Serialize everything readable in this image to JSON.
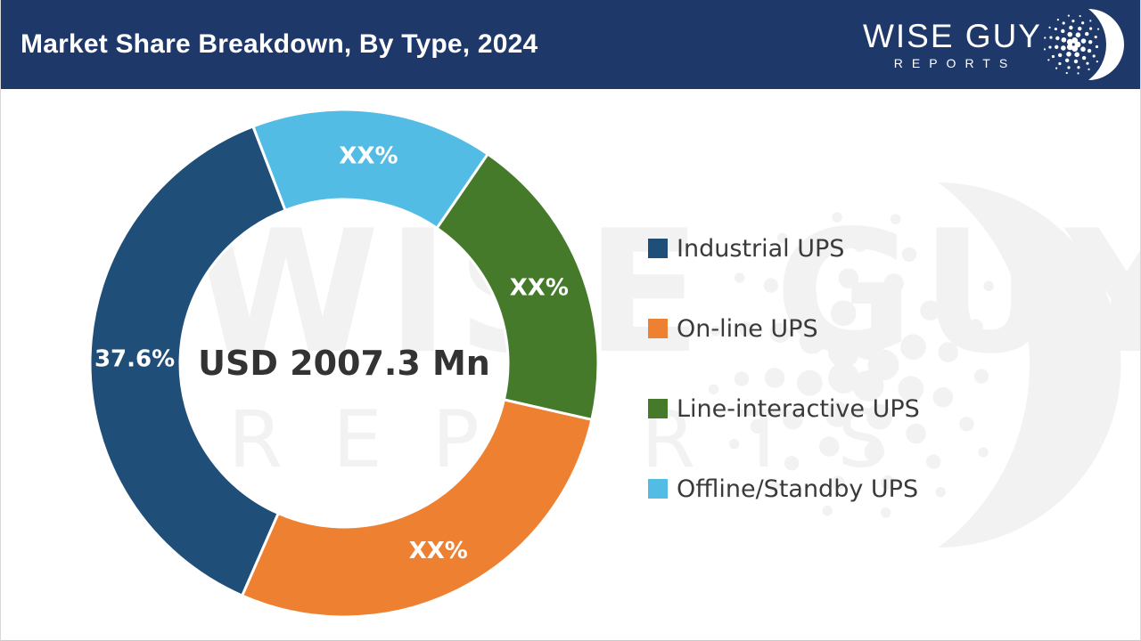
{
  "colors": {
    "header_bg": "#1E3869",
    "content_bg": "#FFFFFF",
    "watermark": "#F2F2F2",
    "slice_label_text": "#FFFFFF",
    "center_label_text": "#333333"
  },
  "header": {
    "title": "Market Share Breakdown, By Type, 2024",
    "logo": {
      "line1": "WISE GUY",
      "line2": "REPORTS"
    }
  },
  "watermark": {
    "line1": "WISE GUY",
    "line2": "REPORTS"
  },
  "chart_data": {
    "type": "pie",
    "subtype": "donut",
    "title": "Market Share Breakdown, By Type, 2024",
    "center_label": "USD 2007.3 Mn",
    "start_angle_deg": 111,
    "direction": "counterclockwise",
    "legend_position": "right",
    "segments": [
      {
        "label": "Industrial UPS",
        "value_pct": 37.6,
        "display_label": "37.6%",
        "color": "#1F4E78"
      },
      {
        "label": "On-line UPS",
        "value_pct": 28.0,
        "display_label": "XX%",
        "color": "#EE8032"
      },
      {
        "label": "Line-interactive UPS",
        "value_pct": 19.0,
        "display_label": "XX%",
        "color": "#467A2B"
      },
      {
        "label": "Offline/Standby UPS",
        "value_pct": 15.4,
        "display_label": "XX%",
        "color": "#53BCE5"
      }
    ]
  }
}
